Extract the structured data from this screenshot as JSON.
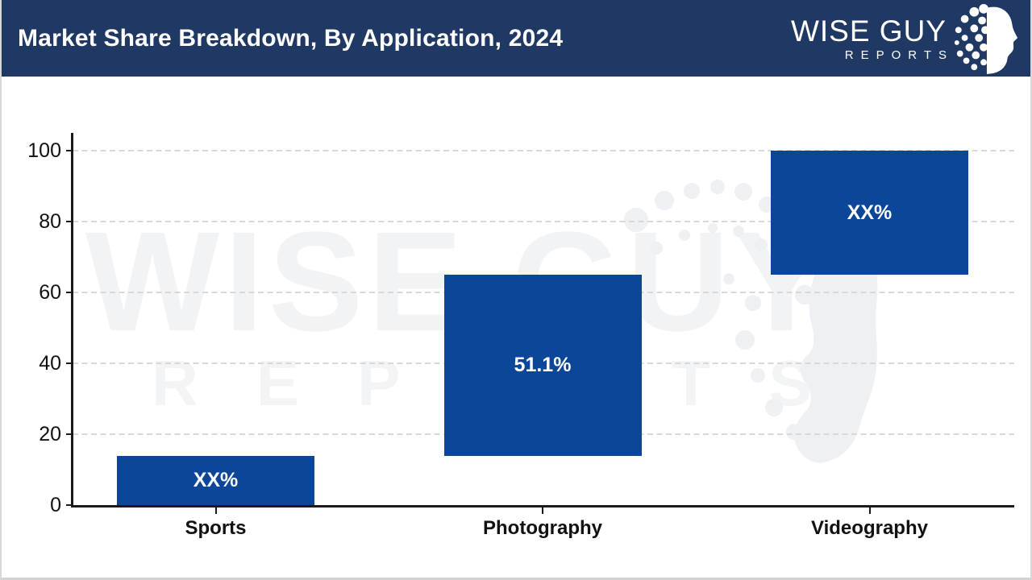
{
  "page": {
    "header": {
      "title": "Market Share Breakdown, By Application, 2024",
      "logo_line1": "WISE GUY",
      "logo_line2": "REPORTS",
      "bg_color": "#203864"
    },
    "watermark": {
      "line1": "WISE GUY",
      "line2": "REPORTS"
    }
  },
  "chart_data": {
    "type": "bar",
    "subtype": "waterfall",
    "title": "Market Share Breakdown, By Application, 2024",
    "categories": [
      "Sports",
      "Photography",
      "Videography"
    ],
    "segments": [
      {
        "category": "Sports",
        "start": 0,
        "end": 13.9,
        "size": 13.9,
        "label": "XX%"
      },
      {
        "category": "Photography",
        "start": 13.9,
        "end": 65.0,
        "size": 51.1,
        "label": "51.1%",
        "value": 51.1
      },
      {
        "category": "Videography",
        "start": 65.0,
        "end": 100,
        "size": 35.0,
        "label": "XX%"
      }
    ],
    "xlabel": "",
    "ylabel": "",
    "ylim": [
      0,
      105
    ],
    "yticks": [
      0,
      20,
      40,
      60,
      80,
      100
    ],
    "grid": "horizontal dashed",
    "legend": "none",
    "bar_color": "#0B4699",
    "bar_label_color": "#FFFFFF",
    "axis_color": "#1A1A1A",
    "gridline_color": "#D8D8D8",
    "header_bg_color": "#203864",
    "watermark_color": "#F2F3F5"
  }
}
